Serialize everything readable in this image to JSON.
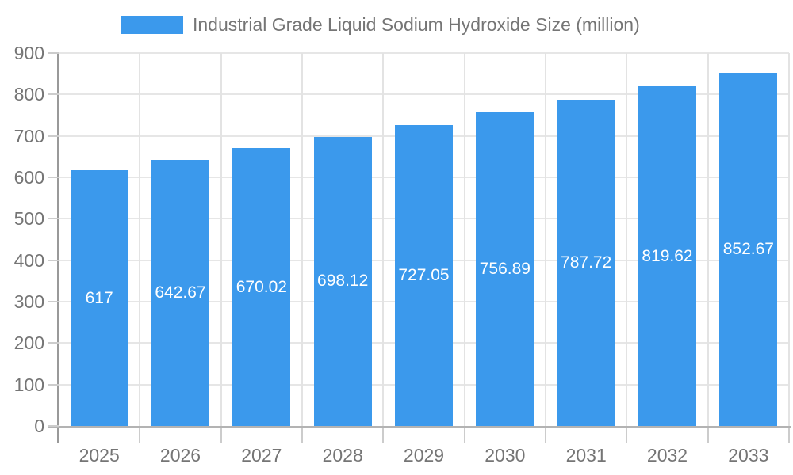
{
  "chart_data": {
    "type": "bar",
    "title": "Industrial Grade Liquid Sodium Hydroxide Size (million)",
    "categories": [
      "2025",
      "2026",
      "2027",
      "2028",
      "2029",
      "2030",
      "2031",
      "2032",
      "2033"
    ],
    "values": [
      617,
      642.67,
      670.02,
      698.12,
      727.05,
      756.89,
      787.72,
      819.62,
      852.67
    ],
    "value_labels": [
      "617",
      "642.67",
      "670.02",
      "698.12",
      "727.05",
      "756.89",
      "787.72",
      "819.62",
      "852.67"
    ],
    "yticks": [
      0,
      100,
      200,
      300,
      400,
      500,
      600,
      700,
      800,
      900
    ],
    "ylim": [
      0,
      900
    ],
    "xlabel": "",
    "ylabel": "",
    "legend_position": "top",
    "grid": true,
    "colors": {
      "bar": "#3b99ec",
      "value_label_text": "#ffffff",
      "axis_text": "#757575",
      "gridline": "#e6e6e6",
      "x_axis_line": "#b3b3b3",
      "y_axis_line": "#999999",
      "tick": "#cccccc",
      "background": "#ffffff"
    }
  }
}
